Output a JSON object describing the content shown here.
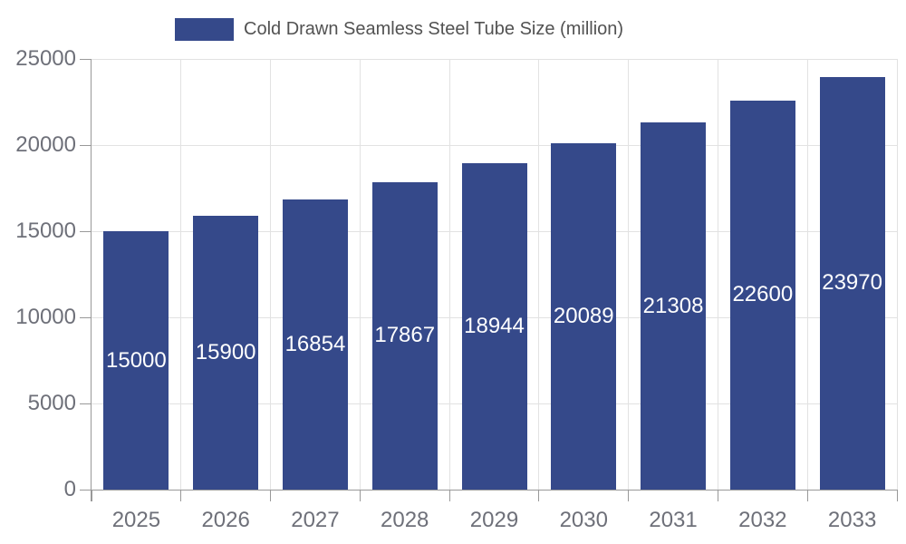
{
  "legend": {
    "label": "Cold Drawn Seamless Steel Tube Size (million)"
  },
  "colors": {
    "background": "#ffffff",
    "bar": "#35498a",
    "grid": "#e2e2e2",
    "axis": "#999999",
    "axis_text": "#6e7079",
    "legend_text": "#525252",
    "value_text": "#ffffff"
  },
  "chart_data": {
    "type": "bar",
    "title": "Cold Drawn Seamless Steel Tube Size (million)",
    "categories": [
      "2025",
      "2026",
      "2027",
      "2028",
      "2029",
      "2030",
      "2031",
      "2032",
      "2033"
    ],
    "values": [
      15000,
      15900,
      16854,
      17867,
      18944,
      20089,
      21308,
      22600,
      23970
    ],
    "xlabel": "",
    "ylabel": "",
    "ylim": [
      0,
      25000
    ],
    "yticks": [
      0,
      5000,
      10000,
      15000,
      20000,
      25000
    ],
    "grid": true,
    "legend_position": "top",
    "value_label_position": "inside-middle"
  }
}
